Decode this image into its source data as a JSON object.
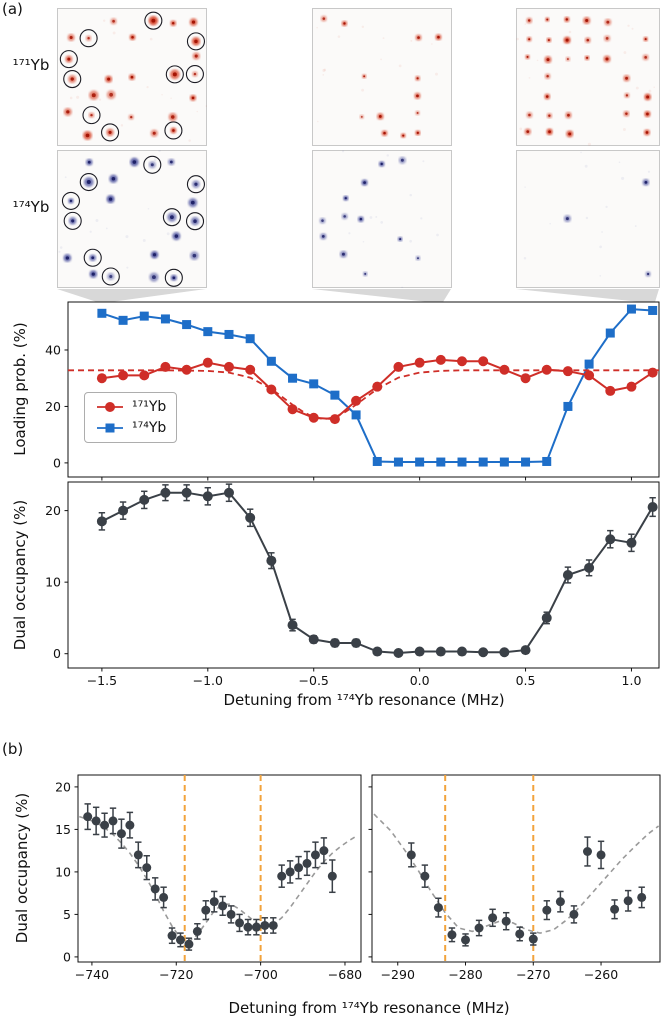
{
  "figure": {
    "panel_a_label": "(a)",
    "panel_b_label": "(b)"
  },
  "images": {
    "grid": 7,
    "dual_seed": 7,
    "dual_count": 10,
    "background": "#fbfaf9",
    "border": "#c8c8c8",
    "ring_color": "#1c1c24",
    "rows": [
      {
        "label": "¹⁷¹Yb",
        "spot": "#d84b33",
        "core": "#a51505",
        "seeds": [
          11,
          12,
          13
        ],
        "counts": [
          26,
          13,
          31
        ]
      },
      {
        "label": "¹⁷⁴Yb",
        "spot": "#4f54a0",
        "core": "#1f2268",
        "seeds": [
          21,
          22,
          23
        ],
        "counts": [
          22,
          12,
          3
        ]
      }
    ]
  },
  "chart_data": [
    {
      "id": "loading-prob-vs-detuning",
      "type": "line",
      "ylabel": "Loading prob. (%)",
      "xlim": [
        -1.66,
        1.13
      ],
      "ylim": [
        -5,
        57
      ],
      "xticks": [
        -1.5,
        -1.0,
        -0.5,
        0.0,
        0.5,
        1.0
      ],
      "yticks": [
        0,
        20,
        40
      ],
      "x": [
        -1.5,
        -1.4,
        -1.3,
        -1.2,
        -1.1,
        -1.0,
        -0.9,
        -0.8,
        -0.7,
        -0.6,
        -0.5,
        -0.4,
        -0.3,
        -0.2,
        -0.1,
        0.0,
        0.1,
        0.2,
        0.3,
        0.4,
        0.5,
        0.6,
        0.7,
        0.8,
        0.9,
        1.0,
        1.1
      ],
      "series": [
        {
          "name": "¹⁷¹Yb",
          "marker": "circle",
          "color": "#cf2e28",
          "values": [
            30,
            31,
            31,
            34,
            33,
            35.5,
            34,
            33,
            26,
            19,
            16,
            15.5,
            22,
            27,
            34,
            35.5,
            36.5,
            36,
            36,
            33,
            30,
            33,
            32.5,
            31,
            25.5,
            27,
            32
          ]
        },
        {
          "name": "¹⁷⁴Yb",
          "marker": "square",
          "color": "#1e6ec8",
          "values": [
            53,
            50.5,
            52,
            51,
            49,
            46.5,
            45.5,
            44,
            36,
            30,
            28,
            24,
            17,
            0.5,
            0.3,
            0.3,
            0.3,
            0.3,
            0.3,
            0.3,
            0.3,
            0.5,
            20,
            35,
            46,
            54.5,
            54
          ]
        }
      ],
      "fit": {
        "color": "#cf2e28",
        "style": "dashed",
        "x": [
          -1.66,
          -1.2,
          -1.0,
          -0.9,
          -0.8,
          -0.7,
          -0.6,
          -0.55,
          -0.5,
          -0.45,
          -0.4,
          -0.35,
          -0.3,
          -0.2,
          -0.1,
          0.0,
          0.1,
          0.2,
          0.3,
          0.5,
          1.13
        ],
        "y": [
          32.8,
          32.8,
          32.6,
          32.0,
          30.2,
          26.2,
          20.6,
          18.1,
          16.2,
          15.5,
          16.2,
          18.1,
          20.6,
          26.2,
          30.2,
          32.0,
          32.6,
          32.8,
          32.8,
          32.8,
          32.8
        ]
      }
    },
    {
      "id": "dual-occupancy-vs-detuning",
      "type": "line",
      "ylabel": "Dual occupancy (%)",
      "xlabel": "Detuning from ¹⁷⁴Yb resonance (MHz)",
      "color": "#3a4047",
      "xlim": [
        -1.66,
        1.13
      ],
      "ylim": [
        -2,
        24
      ],
      "xticks": [
        -1.5,
        -1.0,
        -0.5,
        0.0,
        0.5,
        1.0
      ],
      "yticks": [
        0,
        10,
        20
      ],
      "x": [
        -1.5,
        -1.4,
        -1.3,
        -1.2,
        -1.1,
        -1.0,
        -0.9,
        -0.8,
        -0.7,
        -0.6,
        -0.5,
        -0.4,
        -0.3,
        -0.2,
        -0.1,
        0.0,
        0.1,
        0.2,
        0.3,
        0.4,
        0.5,
        0.6,
        0.7,
        0.8,
        0.9,
        1.0,
        1.1
      ],
      "values": [
        18.5,
        20,
        21.5,
        22.5,
        22.5,
        22,
        22.5,
        19,
        13,
        4,
        2,
        1.5,
        1.5,
        0.3,
        0.1,
        0.3,
        0.3,
        0.3,
        0.2,
        0.2,
        0.5,
        5,
        11,
        12,
        16,
        15.5,
        20.5
      ],
      "errors": [
        1.2,
        1.2,
        1.2,
        1.1,
        1.1,
        1.2,
        1.2,
        1.2,
        1.1,
        0.8,
        0.5,
        0.5,
        0.5,
        0.2,
        0.15,
        0.2,
        0.2,
        0.2,
        0.15,
        0.15,
        0.3,
        0.8,
        1.1,
        1.1,
        1.2,
        1.2,
        1.3
      ]
    },
    {
      "id": "dual-occupancy-sideband-left",
      "type": "scatter",
      "ylabel": "Dual occupancy (%)",
      "xlabel": "Detuning from ¹⁷⁴Yb resonance (MHz)",
      "color": "#3a4047",
      "fit_color": "#9a9a9a",
      "vline_color": "#f2a33c",
      "xlim": [
        -743.3,
        -676.2
      ],
      "ylim": [
        -0.6,
        21.4
      ],
      "xticks": [
        -740,
        -720,
        -700,
        -680
      ],
      "yticks": [
        0,
        5,
        10,
        15,
        20
      ],
      "vlines": [
        -718,
        -700
      ],
      "x": [
        -741,
        -739,
        -737,
        -735,
        -733,
        -731,
        -729,
        -727,
        -725,
        -723,
        -721,
        -719,
        -717,
        -715,
        -713,
        -711,
        -709,
        -707,
        -705,
        -703,
        -701,
        -699,
        -697,
        -695,
        -693,
        -691,
        -689,
        -687,
        -685,
        -683
      ],
      "values": [
        16.5,
        16,
        15.5,
        16,
        14.5,
        15.5,
        12,
        10.5,
        8,
        7,
        2.5,
        2,
        1.5,
        3,
        5.5,
        6.5,
        6,
        5,
        4,
        3.5,
        3.5,
        3.7,
        3.7,
        9.5,
        10,
        10.5,
        11,
        12,
        12.5,
        9.5
      ],
      "errors": [
        1.5,
        1.6,
        1.4,
        1.5,
        1.7,
        1.5,
        1.5,
        1.4,
        1.3,
        1.2,
        0.9,
        0.8,
        0.7,
        0.9,
        1.1,
        1.2,
        1.1,
        1.0,
        1.0,
        0.9,
        0.9,
        0.9,
        0.9,
        1.3,
        1.3,
        1.3,
        1.4,
        1.5,
        1.5,
        1.9
      ],
      "fit": {
        "x": [
          -743,
          -741,
          -739,
          -737,
          -735,
          -733,
          -731,
          -729,
          -727,
          -725,
          -723,
          -721,
          -719,
          -717,
          -715,
          -713,
          -711,
          -709,
          -707,
          -705,
          -703,
          -701,
          -699,
          -697,
          -695,
          -693,
          -691,
          -689,
          -687,
          -685,
          -683,
          -681,
          -679,
          -677
        ],
        "y": [
          16.5,
          16.2,
          15.8,
          15.2,
          14.4,
          13.4,
          12.2,
          10.8,
          9.2,
          7.4,
          5.4,
          3.6,
          2.2,
          1.8,
          2.6,
          4.0,
          5.4,
          6.2,
          6.2,
          5.6,
          4.8,
          4.0,
          3.6,
          3.8,
          4.6,
          5.8,
          7.2,
          8.6,
          10.0,
          11.2,
          12.2,
          13.0,
          13.7,
          14.3
        ]
      }
    },
    {
      "id": "dual-occupancy-sideband-right",
      "type": "scatter",
      "color": "#3a4047",
      "fit_color": "#9a9a9a",
      "vline_color": "#f2a33c",
      "xlim": [
        -293.8,
        -251.3
      ],
      "ylim": [
        -0.6,
        21.4
      ],
      "xticks": [
        -290,
        -280,
        -270,
        -260
      ],
      "yticks": [
        0,
        5,
        10,
        15,
        20
      ],
      "vlines": [
        -283,
        -270
      ],
      "x": [
        -288,
        -286,
        -284,
        -282,
        -280,
        -278,
        -276,
        -274,
        -272,
        -270,
        -268,
        -266,
        -264,
        -262,
        -260,
        -258,
        -256,
        -254
      ],
      "values": [
        12,
        9.5,
        5.8,
        2.6,
        2.0,
        3.4,
        4.6,
        4.2,
        2.7,
        2.1,
        5.5,
        6.5,
        5.0,
        12.4,
        12.0,
        5.6,
        6.6,
        7.0
      ],
      "errors": [
        1.4,
        1.3,
        1.1,
        0.8,
        0.7,
        0.9,
        1.0,
        1.0,
        0.8,
        0.7,
        1.1,
        1.2,
        1.0,
        1.7,
        1.6,
        1.1,
        1.2,
        1.2
      ],
      "fit": {
        "x": [
          -293.5,
          -291,
          -289,
          -287,
          -285,
          -283,
          -281,
          -279,
          -277,
          -275,
          -273,
          -271,
          -269,
          -267,
          -265,
          -263,
          -261,
          -259,
          -257,
          -255,
          -253,
          -251.5
        ],
        "y": [
          16.8,
          14.8,
          12.6,
          10.2,
          7.6,
          5.2,
          3.4,
          3.0,
          3.6,
          4.2,
          4.0,
          3.2,
          2.8,
          3.2,
          4.4,
          6.0,
          7.8,
          9.6,
          11.4,
          13.0,
          14.5,
          15.4
        ]
      }
    }
  ]
}
